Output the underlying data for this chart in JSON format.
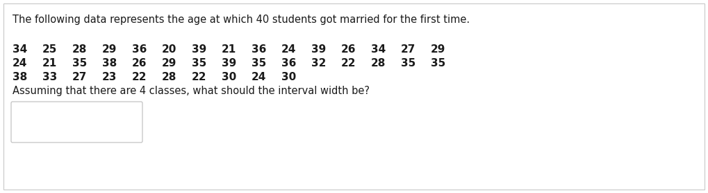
{
  "title": "The following data represents the age at which 40 students got married for the first time.",
  "row1": [
    34,
    25,
    28,
    29,
    36,
    20,
    39,
    21,
    36,
    24,
    39,
    26,
    34,
    27,
    29
  ],
  "row2": [
    24,
    21,
    35,
    38,
    26,
    29,
    35,
    39,
    35,
    36,
    32,
    22,
    28,
    35,
    35
  ],
  "row3": [
    38,
    33,
    27,
    23,
    22,
    28,
    22,
    30,
    24,
    30
  ],
  "question": "Assuming that there are 4 classes, what should the interval width be?",
  "bg_color": "#ffffff",
  "border_color": "#c8c8c8",
  "text_color": "#1a1a1a",
  "title_font_size": 10.5,
  "data_font_size": 11,
  "question_font_size": 10.5
}
